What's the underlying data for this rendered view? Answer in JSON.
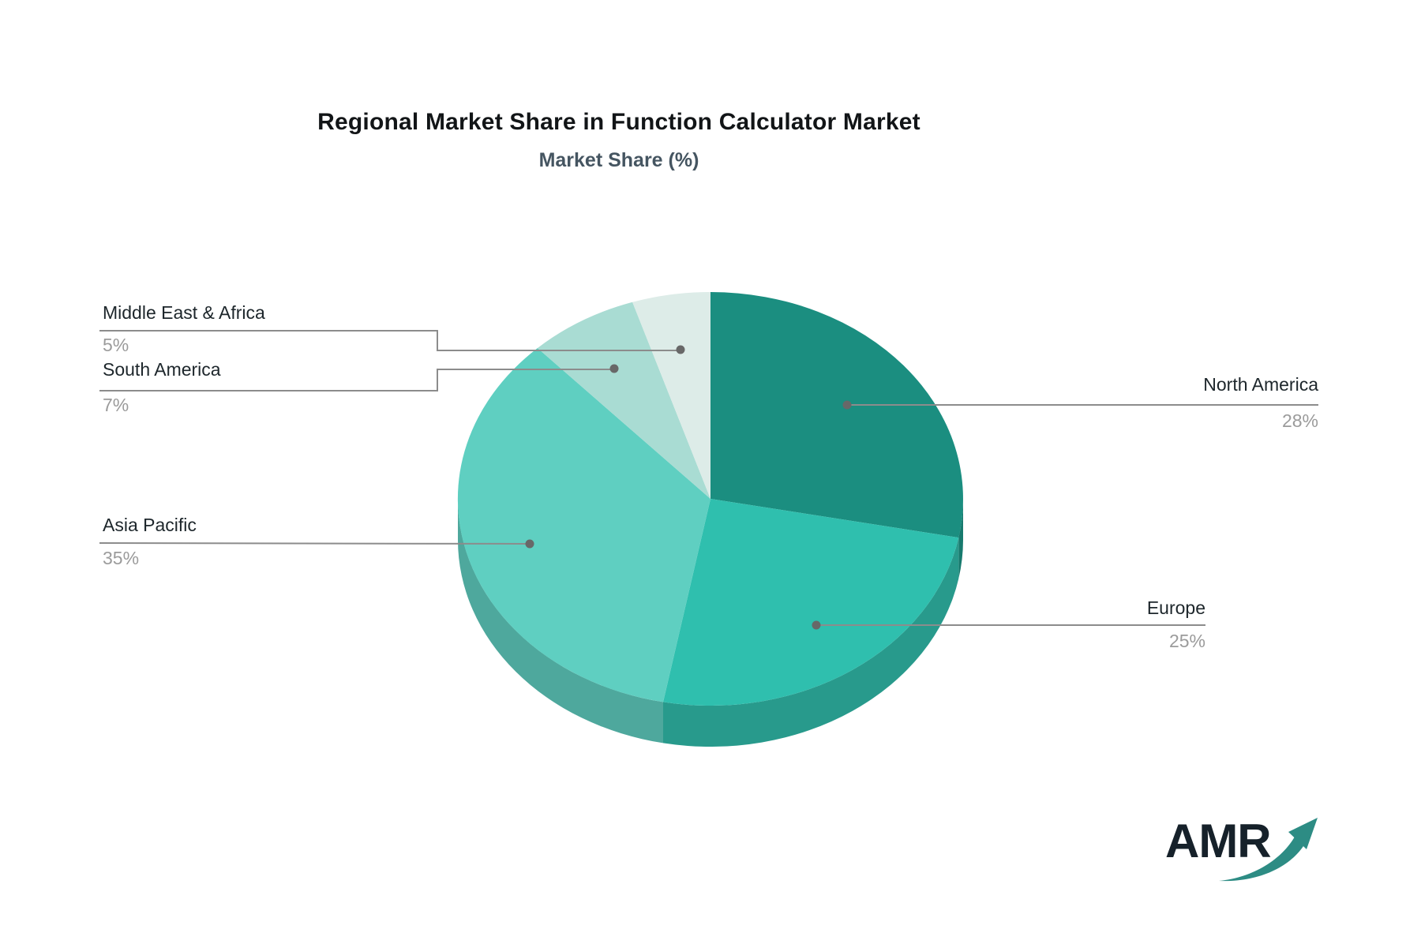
{
  "header": {
    "title": "Regional Market Share in Function Calculator Market",
    "subtitle": "Market Share (%)"
  },
  "chart_data": {
    "type": "pie",
    "style": "3d-pie",
    "title": "Regional Market Share in Function Calculator Market",
    "subtitle": "Market Share (%)",
    "unit": "%",
    "total": 100,
    "start_angle": "12 o'clock, clockwise",
    "labels_layout": "outside with leader lines; Asia Pacific / South America / Middle East & Africa on left, North America / Europe on right",
    "slices": [
      {
        "id": "north-america",
        "label": "North America",
        "value": 28,
        "display": "28%",
        "color": "#1b8e80",
        "side_color": "#177a6e"
      },
      {
        "id": "europe",
        "label": "Europe",
        "value": 25,
        "display": "25%",
        "color": "#2fbfae",
        "side_color": "#289a8c"
      },
      {
        "id": "asia-pacific",
        "label": "Asia Pacific",
        "value": 35,
        "display": "35%",
        "color": "#5fcfc1",
        "side_color": "#4ea89d"
      },
      {
        "id": "south-america",
        "label": "South America",
        "value": 7,
        "display": "7%",
        "color": "#a9dcd3",
        "side_color": "#8fbfb6"
      },
      {
        "id": "middle-east-africa",
        "label": "Middle East & Africa",
        "value": 5,
        "display": "5%",
        "color": "#ddece8",
        "side_color": "#bcd4cf"
      }
    ]
  },
  "branding": {
    "logo_text": "AMR"
  },
  "colors": {
    "background": "#ffffff",
    "title_text": "#121517",
    "subtitle_text": "#455561",
    "label_text": "#1d262b",
    "value_text": "#9b9b9b",
    "leader_line": "#8c8c8c",
    "leader_dot": "#686868",
    "logo_text": "#16212a",
    "logo_arrow": "#2d8c84"
  }
}
